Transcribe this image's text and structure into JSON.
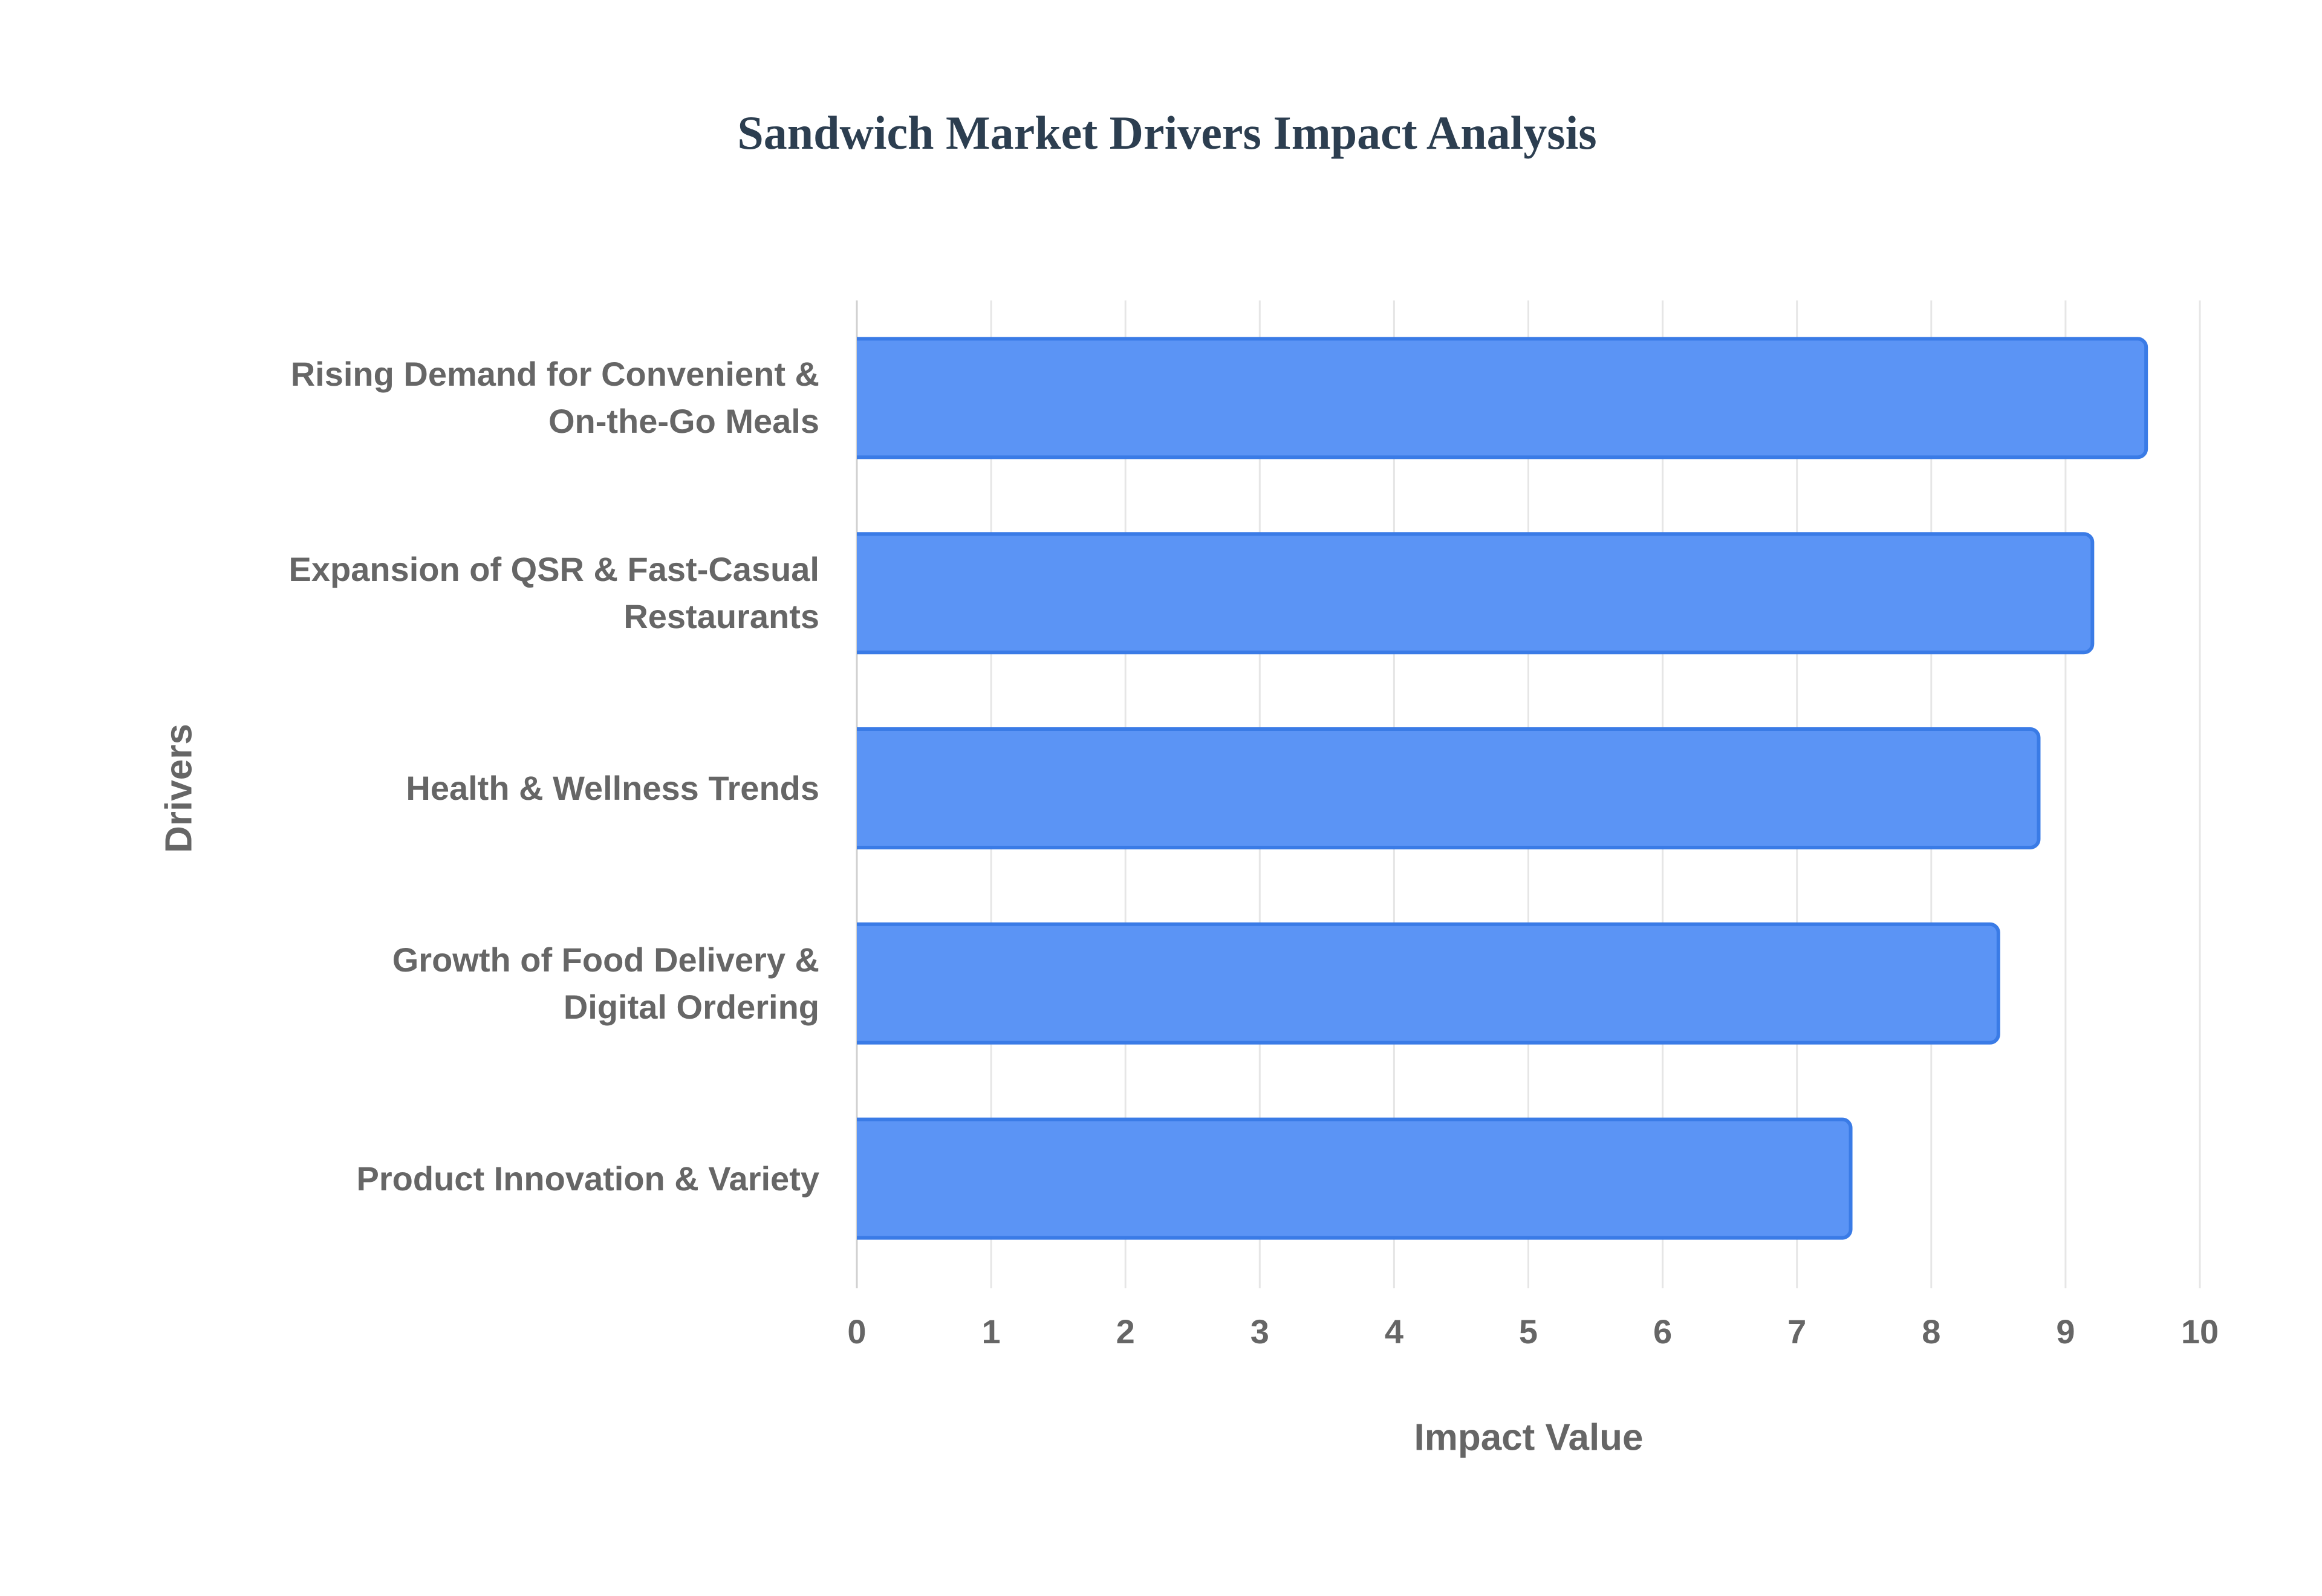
{
  "chart_data": {
    "type": "barh",
    "title": "Sandwich Market Drivers Impact Analysis",
    "x_label": "Impact Value",
    "y_label": "Drivers",
    "categories": [
      "Rising Demand for Convenient &\nOn-the-Go Meals",
      "Expansion of QSR & Fast-Casual\nRestaurants",
      "Health & Wellness Trends",
      "Growth of Food Delivery &\nDigital Ordering",
      "Product Innovation & Variety"
    ],
    "values": [
      9.6,
      9.2,
      8.8,
      8.5,
      7.4
    ],
    "color": "#5b94f5",
    "xlim": [
      0,
      10
    ],
    "xticks": [
      0,
      1,
      2,
      3,
      4,
      5,
      6,
      7,
      8,
      9,
      10
    ],
    "grid": true
  }
}
